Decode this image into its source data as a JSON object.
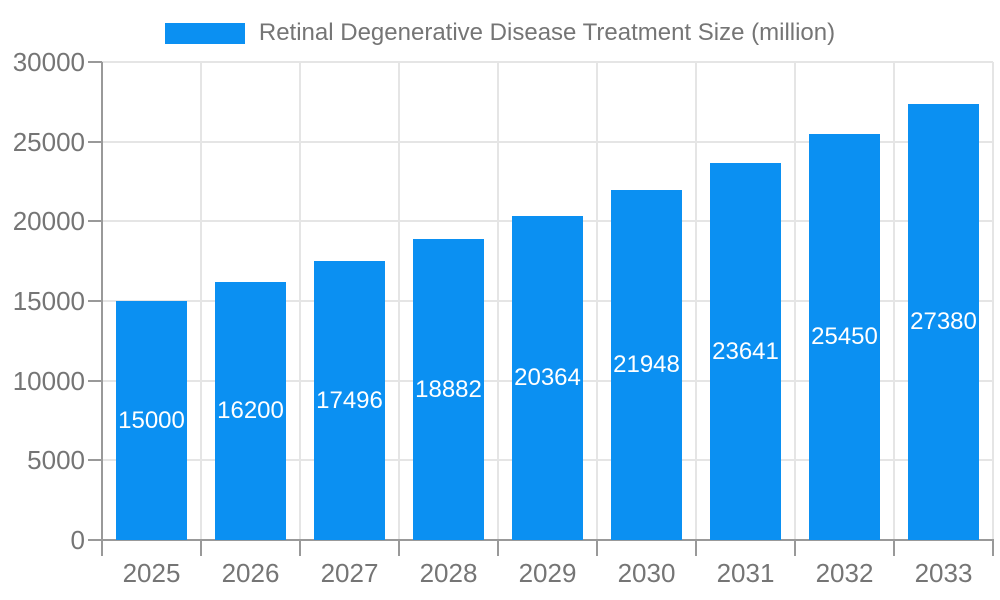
{
  "legend": {
    "label": "Retinal Degenerative Disease Treatment Size (million)"
  },
  "chart_data": {
    "type": "bar",
    "title": "Retinal Degenerative Disease Treatment Size (million)",
    "categories": [
      "2025",
      "2026",
      "2027",
      "2028",
      "2029",
      "2030",
      "2031",
      "2032",
      "2033"
    ],
    "values": [
      15000,
      16200,
      17496,
      18882,
      20364,
      21948,
      23641,
      25450,
      27380
    ],
    "xlabel": "",
    "ylabel": "",
    "ylim": [
      0,
      30000
    ],
    "yticks": [
      0,
      5000,
      10000,
      15000,
      20000,
      25000,
      30000
    ],
    "legend_position": "top",
    "grid": "on",
    "colors": {
      "bar": "#0B90F2",
      "bar_label_text": "#FFFFFF",
      "axis_text": "#757575",
      "gridline": "#E5E5E5",
      "axis_line": "#999999",
      "background": "#FFFFFF"
    }
  }
}
